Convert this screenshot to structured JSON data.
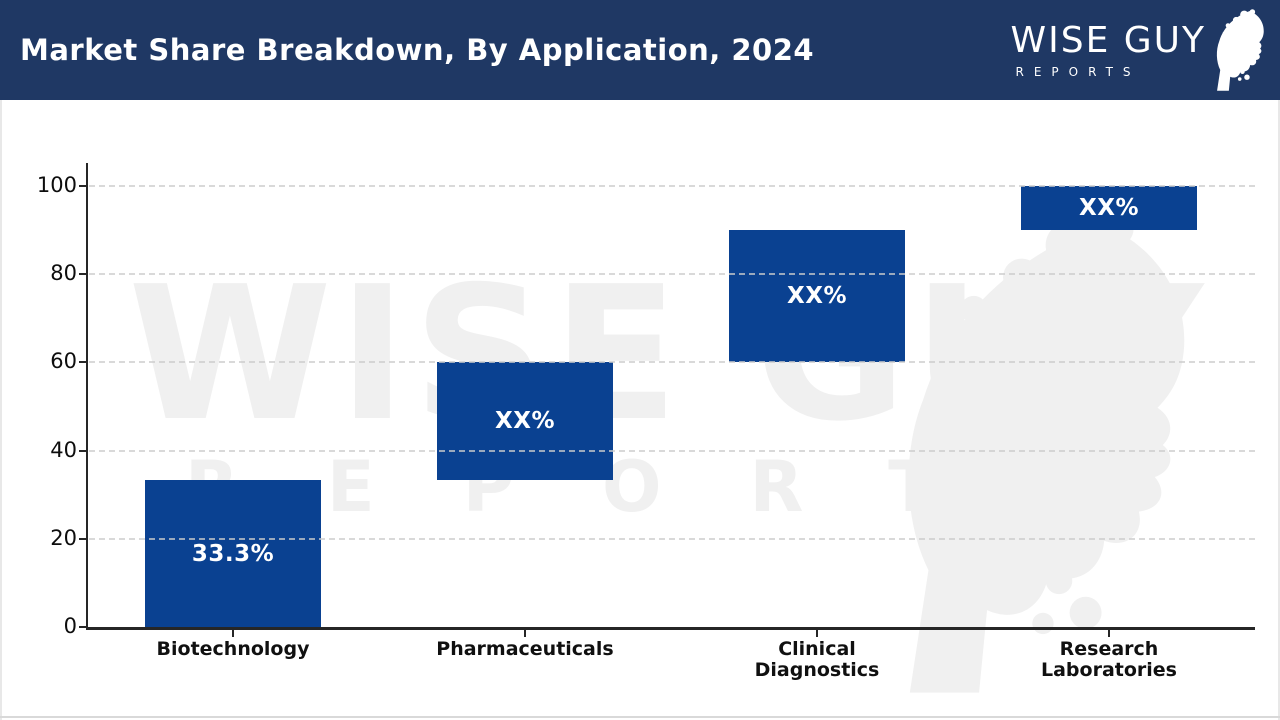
{
  "header": {
    "title": "Market Share Breakdown, By Application, 2024",
    "brand": {
      "name": "WISE GUY",
      "sub": "REPORTS"
    }
  },
  "watermark": {
    "line1": "WISE GUY",
    "line2": "REPORTS"
  },
  "colors": {
    "header_bg": "#1f3864",
    "bar": "#0a4191",
    "bar_label": "#ffffff",
    "axis": "#262626",
    "grid": "#cccccc",
    "watermark": "#f0f0f0"
  },
  "chart_data": {
    "type": "bar",
    "subtype": "waterfall",
    "title": "Market Share Breakdown, By Application, 2024",
    "categories": [
      "Biotechnology",
      "Pharmaceuticals",
      "Clinical\nDiagnostics",
      "Research\nLaboratories"
    ],
    "segments": [
      {
        "category": "Biotechnology",
        "start": 0,
        "end": 33.3,
        "label": "33.3%"
      },
      {
        "category": "Pharmaceuticals",
        "start": 33.3,
        "end": 60,
        "label": "XX%"
      },
      {
        "category": "Clinical Diagnostics",
        "start": 60,
        "end": 90,
        "label": "XX%"
      },
      {
        "category": "Research Laboratories",
        "start": 90,
        "end": 100,
        "label": "XX%"
      }
    ],
    "ylim": [
      0,
      100
    ],
    "yticks": [
      0,
      20,
      40,
      60,
      80,
      100
    ],
    "xlabel": "",
    "ylabel": "",
    "grid": "horizontal-dashed",
    "legend": "none"
  }
}
